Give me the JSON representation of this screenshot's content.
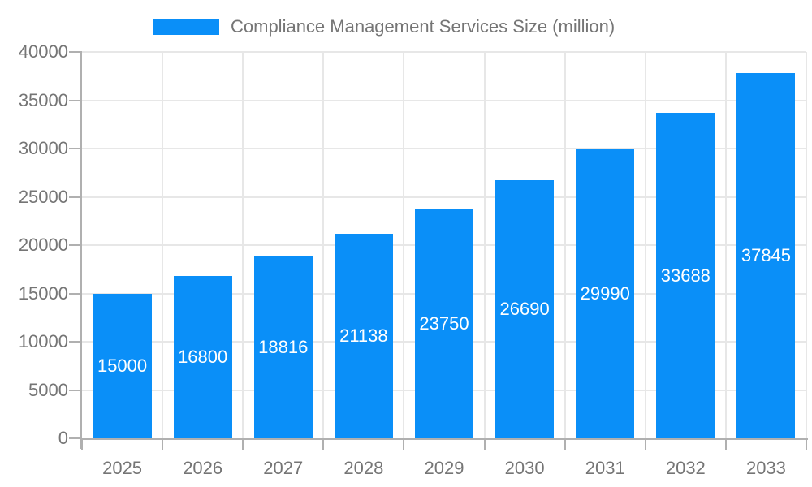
{
  "legend": {
    "label": "Compliance Management Services Size (million)"
  },
  "chart_data": {
    "type": "bar",
    "title": "Compliance Management Services Size (million)",
    "categories": [
      "2025",
      "2026",
      "2027",
      "2028",
      "2029",
      "2030",
      "2031",
      "2032",
      "2033"
    ],
    "values": [
      15000,
      16800,
      18816,
      21138,
      23750,
      26690,
      29990,
      33688,
      37845
    ],
    "bar_labels": [
      "15000",
      "16800",
      "18816",
      "21138",
      "23750",
      "26690",
      "29990",
      "33688",
      "37845"
    ],
    "xlabel": "",
    "ylabel": "",
    "ylim": [
      0,
      40000
    ],
    "ytick_step": 5000,
    "yticks": [
      "0",
      "5000",
      "10000",
      "15000",
      "20000",
      "25000",
      "30000",
      "35000",
      "40000"
    ],
    "grid": true,
    "legend_position": "top-center",
    "value_labels_inside": true
  },
  "colors": {
    "bar": "#0a8ff8",
    "value_label": "#ffffff",
    "axis": "#b0b0b0",
    "tick": "#b0b0b0",
    "grid": "#e7e7e7",
    "text": "#757575",
    "background": "#ffffff"
  }
}
